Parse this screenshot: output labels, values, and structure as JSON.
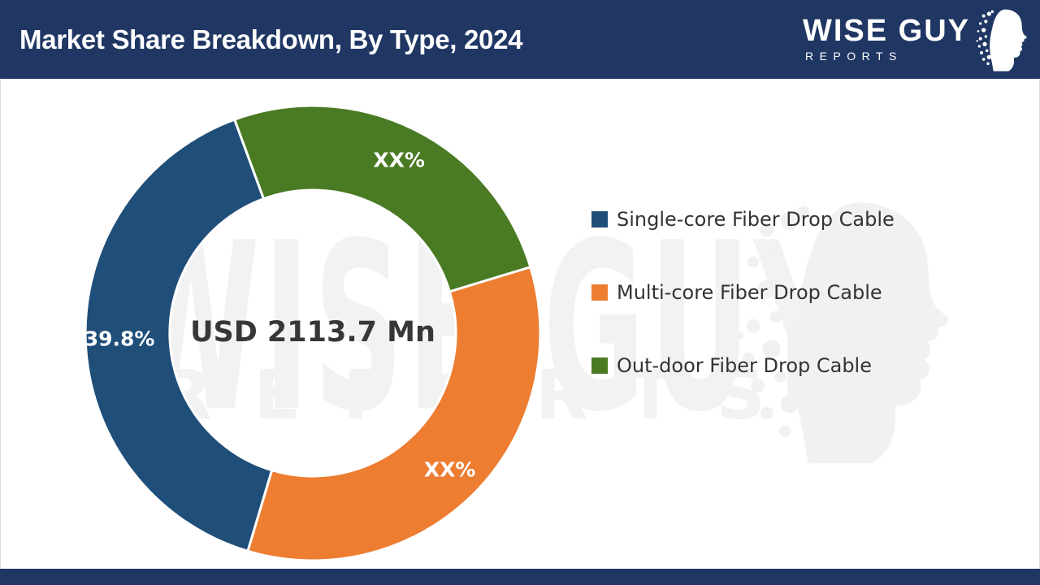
{
  "header": {
    "title": "Market Share Breakdown, By Type, 2024",
    "background": "#203764",
    "logo": {
      "line1": "WISE GUY",
      "line2": "REPORTS"
    }
  },
  "watermark": {
    "line1": "WISE GUY",
    "line2": "REPORTS"
  },
  "chart_data": {
    "type": "pie",
    "donut": true,
    "center_label": "USD 2113.7 Mn",
    "start_angle_deg": 196.6,
    "legend_position": "right",
    "slices": [
      {
        "label": "Single-core Fiber Drop Cable",
        "value": 39.8,
        "display_label": "39.8%",
        "color": "#1F4E79"
      },
      {
        "label": "Out-door Fiber Drop Cable",
        "value": 25.9,
        "display_label": "XX%",
        "color": "#4A7A23"
      },
      {
        "label": "Multi-core Fiber Drop Cable",
        "value": 34.3,
        "display_label": "XX%",
        "color": "#ED7D31"
      }
    ],
    "legend": [
      {
        "label": "Single-core Fiber Drop Cable",
        "color": "#1F4E79"
      },
      {
        "label": "Multi-core Fiber Drop Cable",
        "color": "#ED7D31"
      },
      {
        "label": "Out-door Fiber Drop Cable",
        "color": "#4A7A23"
      }
    ]
  },
  "footer": {
    "background": "#203764"
  }
}
